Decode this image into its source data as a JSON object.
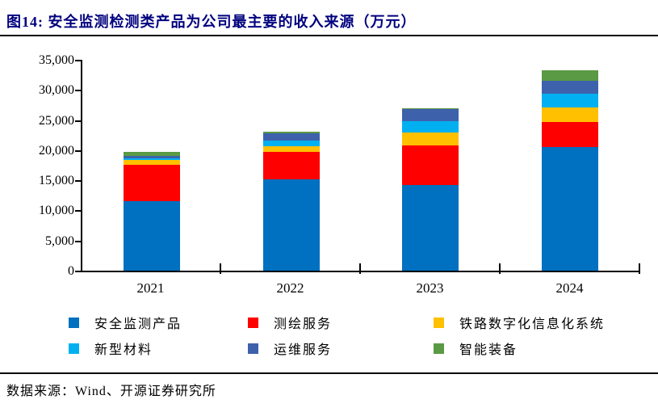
{
  "title": "图14: 安全监测检测类产品为公司最主要的收入来源（万元）",
  "source": "数据来源：Wind、开源证券研究所",
  "colors": {
    "title_navy": "#00007E",
    "axis_black": "#000000"
  },
  "legend": {
    "items": [
      {
        "label": "安全监测产品"
      },
      {
        "label": "测绘服务"
      },
      {
        "label": "铁路数字化信息化系统"
      },
      {
        "label": "新型材料"
      },
      {
        "label": "运维服务"
      },
      {
        "label": "智能装备"
      }
    ]
  },
  "chart_data": {
    "type": "bar",
    "stacked": true,
    "title": "安全监测检测类产品为公司最主要的收入来源（万元）",
    "categories": [
      "2021",
      "2022",
      "2023",
      "2024"
    ],
    "series": [
      {
        "name": "安全监测产品",
        "color": "#0070C0",
        "values": [
          11600,
          15200,
          14200,
          20500
        ]
      },
      {
        "name": "测绘服务",
        "color": "#FE0000",
        "values": [
          6000,
          4500,
          6600,
          4200
        ]
      },
      {
        "name": "铁路数字化信息化系统",
        "color": "#FFC000",
        "values": [
          800,
          900,
          2100,
          2350
        ]
      },
      {
        "name": "新型材料",
        "color": "#00B0F0",
        "values": [
          250,
          1050,
          1900,
          2300
        ]
      },
      {
        "name": "运维服务",
        "color": "#3E61AC",
        "values": [
          450,
          1200,
          2000,
          2200
        ]
      },
      {
        "name": "智能装备",
        "color": "#5A9A44",
        "values": [
          600,
          200,
          200,
          1650
        ]
      }
    ],
    "totals": [
      19700,
      23050,
      27000,
      33200
    ],
    "xlabel": "",
    "ylabel": "",
    "ylim": [
      0,
      35000
    ],
    "ytick_interval": 5000,
    "ytick_labels": [
      "0",
      "5,000",
      "10,000",
      "15,000",
      "20,000",
      "25,000",
      "30,000",
      "35,000"
    ],
    "grid": false,
    "legend_position": "bottom"
  }
}
